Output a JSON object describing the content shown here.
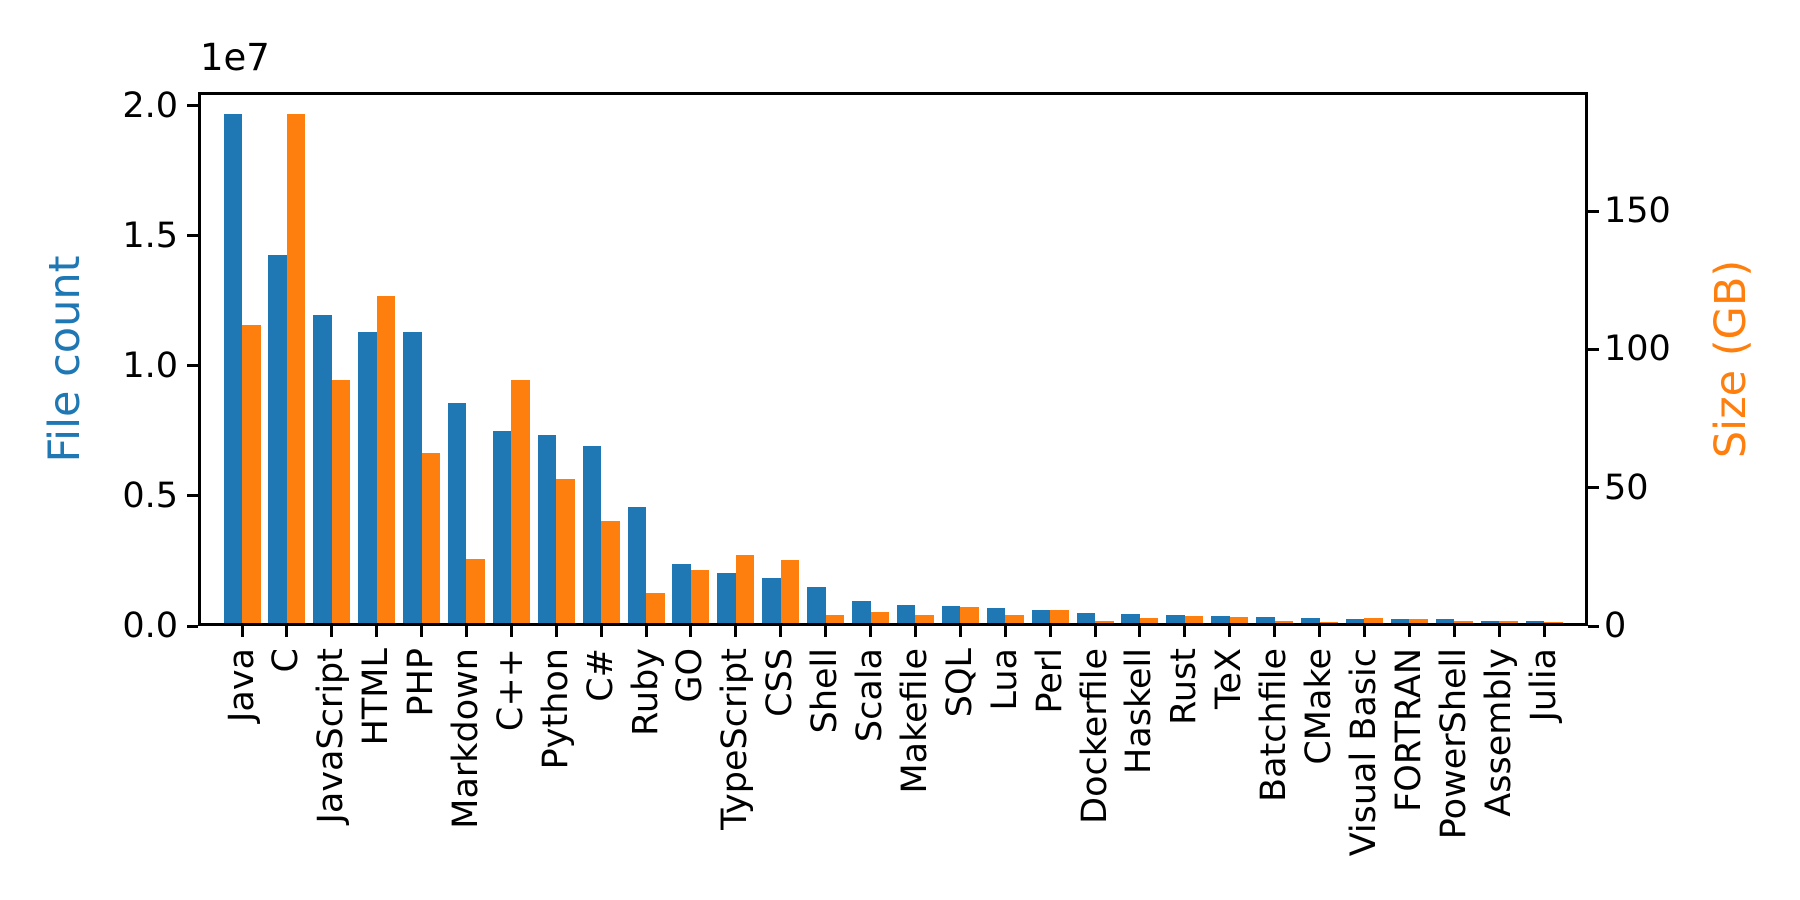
{
  "figure": {
    "background": "#ffffff",
    "plot_background": "#ffffff",
    "spine_color": "#000000"
  },
  "chart_data": {
    "type": "bar",
    "title": "",
    "grid": false,
    "legend_position": "none",
    "categories": [
      "Java",
      "C",
      "JavaScript",
      "HTML",
      "PHP",
      "Markdown",
      "C++",
      "Python",
      "C#",
      "Ruby",
      "GO",
      "TypeScript",
      "CSS",
      "Shell",
      "Scala",
      "Makefile",
      "SQL",
      "Lua",
      "Perl",
      "Dockerfile",
      "Haskell",
      "Rust",
      "TeX",
      "Batchfile",
      "CMake",
      "Visual Basic",
      "FORTRAN",
      "PowerShell",
      "Assembly",
      "Julia"
    ],
    "series": [
      {
        "name": "File count",
        "axis": "left",
        "color": "#1f77b4",
        "values": [
          19548190,
          14143113,
          11839883,
          11178557,
          11177610,
          8464626,
          7380520,
          7226626,
          6811652,
          4473331,
          2265436,
          1940406,
          1734406,
          1385648,
          835755,
          679430,
          656671,
          578554,
          497949,
          366505,
          340623,
          322431,
          251015,
          236945,
          175282,
          155652,
          142038,
          136846,
          82905,
          58317
        ]
      },
      {
        "name": "Size (GB)",
        "axis": "right",
        "color": "#ff7f0e",
        "values": [
          107.7,
          183.83,
          87.82,
          118.12,
          61.41,
          23.09,
          87.73,
          52.03,
          36.83,
          10.95,
          19.28,
          24.59,
          22.67,
          3.01,
          3.87,
          2.92,
          5.67,
          2.81,
          4.7,
          0.71,
          1.85,
          2.68,
          2.15,
          0.7,
          0.54,
          1.91,
          1.62,
          0.69,
          0.78,
          0.29
        ]
      }
    ],
    "left_axis": {
      "label": "File count",
      "color": "#1f77b4",
      "offset_label": "1e7",
      "tick_labels": [
        "0.0",
        "0.5",
        "1.0",
        "1.5",
        "2.0"
      ],
      "tick_values": [
        0,
        5000000,
        10000000,
        15000000,
        20000000
      ],
      "min": 0,
      "max": 20525600
    },
    "right_axis": {
      "label": "Size (GB)",
      "color": "#ff7f0e",
      "tick_labels": [
        "0",
        "50",
        "100",
        "150"
      ],
      "tick_values": [
        0,
        50,
        100,
        150
      ],
      "min": 0,
      "max": 193.02
    }
  }
}
